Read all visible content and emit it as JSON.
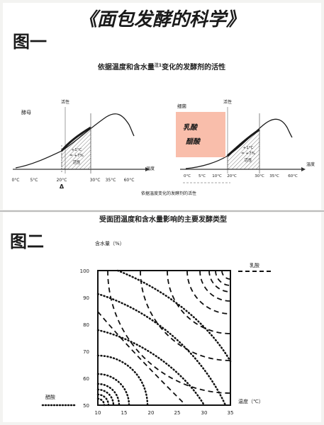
{
  "page_title": "《面包发酵的科学》",
  "figure1": {
    "tag": "图一",
    "title": "依据温度和含水量",
    "title_note": "注1",
    "title_rest": "变化的发酵剂的活性",
    "left_chart": {
      "y_label": "活性",
      "series_label": "酵母",
      "x_label": "温度",
      "ticks": [
        "0°C",
        "5°C",
        "20°C",
        "30°C",
        "35°C",
        "60°C"
      ],
      "shaded_note": [
        "+1°C",
        "= +7%",
        "活性"
      ],
      "mark": "Δ"
    },
    "right_chart": {
      "y_label": "活性",
      "series_label": "细菌",
      "x_label": "温度",
      "ticks": [
        "0°C",
        "5°C",
        "10°C",
        "20°C",
        "30°C",
        "35°C",
        "60°C"
      ],
      "shaded_note": [
        "+1°C",
        "= +7%",
        "活性"
      ],
      "sticky_note": [
        "乳酸",
        "醋酸"
      ]
    },
    "caption": "依据温度变化的发酵剂的活性"
  },
  "figure2": {
    "tag": "图二",
    "title": "受面团温度和含水量影响的主要发酵类型",
    "y_label": "含水量（%）",
    "x_label": "温度（℃）",
    "legend_lactic": "乳酸",
    "legend_acetic": "醋酸",
    "y_ticks": [
      "100",
      "90",
      "80",
      "70",
      "60",
      "50"
    ],
    "x_ticks": [
      "10",
      "15",
      "20",
      "25",
      "30",
      "35"
    ]
  }
}
